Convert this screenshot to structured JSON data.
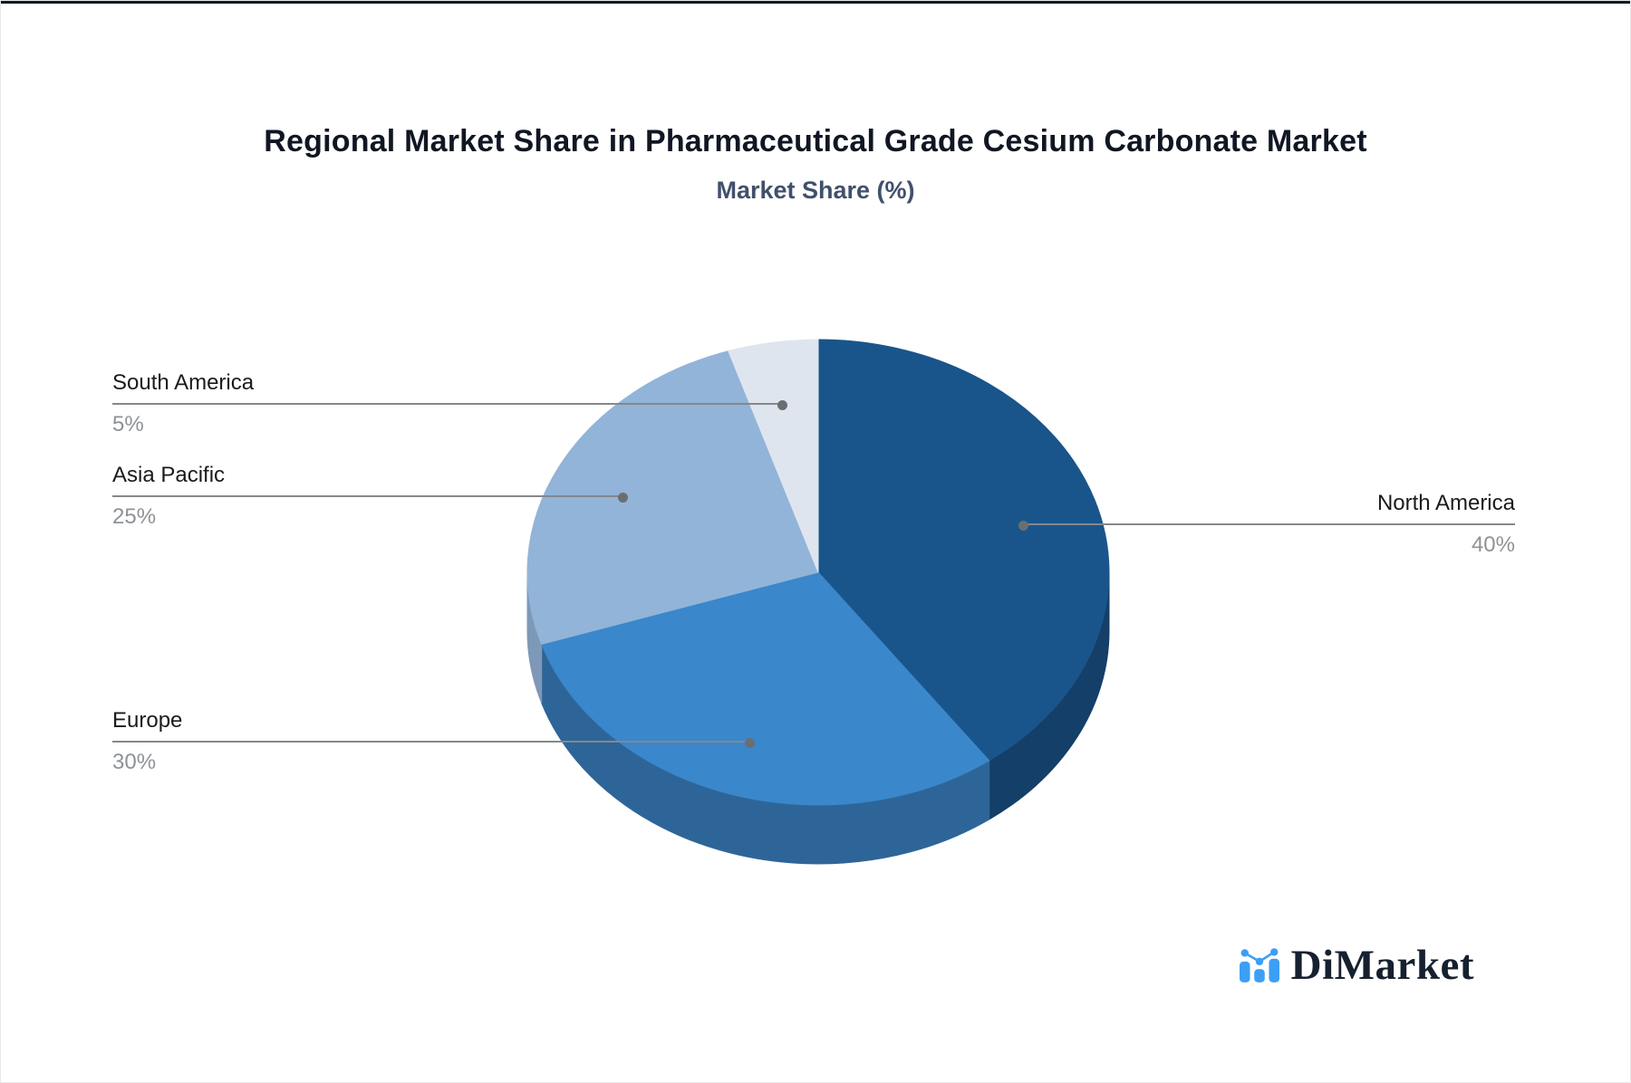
{
  "chart_data": {
    "type": "pie",
    "projection": "3d",
    "unit": "%",
    "title": "Regional Market Share in Pharmaceutical Grade Cesium Carbonate Market",
    "subtitle": "Market Share (%)",
    "labels_style": "leader-lines",
    "legend": "none",
    "slices": [
      {
        "label": "North America",
        "value": 40,
        "pct_label": "40%",
        "color": "#19558b",
        "side_color": "#133f68",
        "label_side": "right"
      },
      {
        "label": "Europe",
        "value": 30,
        "pct_label": "30%",
        "color": "#3a87cb",
        "side_color": "#2e6598",
        "label_side": "left"
      },
      {
        "label": "Asia Pacific",
        "value": 25,
        "pct_label": "25%",
        "color": "#92b4d8",
        "side_color": "#7e98b8",
        "label_side": "left"
      },
      {
        "label": "South America",
        "value": 5,
        "pct_label": "5%",
        "color": "#dfe5ee",
        "side_color": "#c5cfdc",
        "label_side": "left"
      }
    ]
  },
  "leader_style": {
    "line_color": "#85888b",
    "dot_color": "#6b6e70",
    "name_color": "#1b1b1b",
    "pct_color": "#8e9296"
  },
  "branding": {
    "logo_text": "DiMarket",
    "logo_color": "#16202f",
    "icon_color": "#3d9ef6"
  }
}
